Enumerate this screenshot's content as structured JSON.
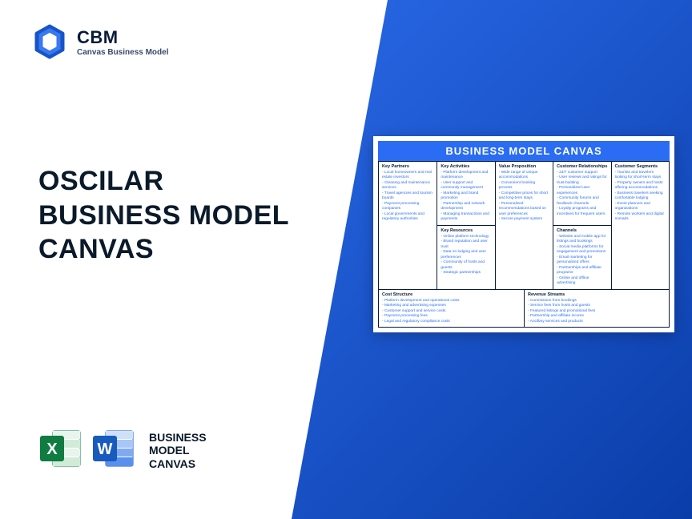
{
  "colors": {
    "brand_blue": "#2a6df4",
    "dark_navy": "#0a1a3a",
    "bg_gradient_start": "#2968e6",
    "bg_gradient_end": "#0a3da8"
  },
  "logo": {
    "brand": "CBM",
    "tagline": "Canvas Business Model"
  },
  "title": {
    "line1": "OSCILAR",
    "line2": "BUSINESS MODEL",
    "line3": "CANVAS"
  },
  "formats": {
    "label_line1": "BUSINESS",
    "label_line2": "MODEL",
    "label_line3": "CANVAS"
  },
  "canvas": {
    "title": "BUSINESS MODEL CANVAS",
    "sections": {
      "key_partners": {
        "heading": "Key Partners",
        "items": [
          "Local homeowners and real estate investors",
          "Cleaning and maintenance services",
          "Travel agencies and tourism boards",
          "Payment processing companies",
          "Local governments and regulatory authorities"
        ]
      },
      "key_activities": {
        "heading": "Key Activities",
        "items": [
          "Platform development and maintenance",
          "User support and community management",
          "Marketing and brand promotion",
          "Partnership and network development",
          "Managing transactions and payments"
        ]
      },
      "key_resources": {
        "heading": "Key Resources",
        "items": [
          "Online platform technology",
          "Brand reputation and user trust",
          "Data on lodging and user preferences",
          "Community of hosts and guests",
          "Strategic partnerships"
        ]
      },
      "value_proposition": {
        "heading": "Value Proposition",
        "items": [
          "Wide range of unique accommodations",
          "Convenient booking process",
          "Competitive prices for short and long-term stays",
          "Personalized recommendations based on user preferences",
          "Secure payment system"
        ]
      },
      "customer_relationships": {
        "heading": "Customer Relationships",
        "items": [
          "24/7 customer support",
          "User reviews and ratings for trust-building",
          "Personalized user experiences",
          "Community forums and feedback channels",
          "Loyalty programs and incentives for frequent users"
        ]
      },
      "channels": {
        "heading": "Channels",
        "items": [
          "Website and mobile app for listings and bookings",
          "Social media platforms for engagement and promotions",
          "Email marketing for personalized offers",
          "Partnerships and affiliate programs",
          "Online and offline advertising"
        ]
      },
      "customer_segments": {
        "heading": "Customer Segments",
        "items": [
          "Tourists and travelers looking for short-term stays",
          "Property owners and hosts offering accommodations",
          "Business travelers seeking comfortable lodging",
          "Event planners and organizations",
          "Remote workers and digital nomads"
        ]
      },
      "cost_structure": {
        "heading": "Cost Structure",
        "items": [
          "Platform development and operational costs",
          "Marketing and advertising expenses",
          "Customer support and service costs",
          "Payment processing fees",
          "Legal and regulatory compliance costs"
        ]
      },
      "revenue_streams": {
        "heading": "Revenue Streams",
        "items": [
          "Commission from bookings",
          "Service fees from hosts and guests",
          "Featured listings and promotional fees",
          "Partnership and affiliate income",
          "Ancillary services and products"
        ]
      }
    }
  }
}
